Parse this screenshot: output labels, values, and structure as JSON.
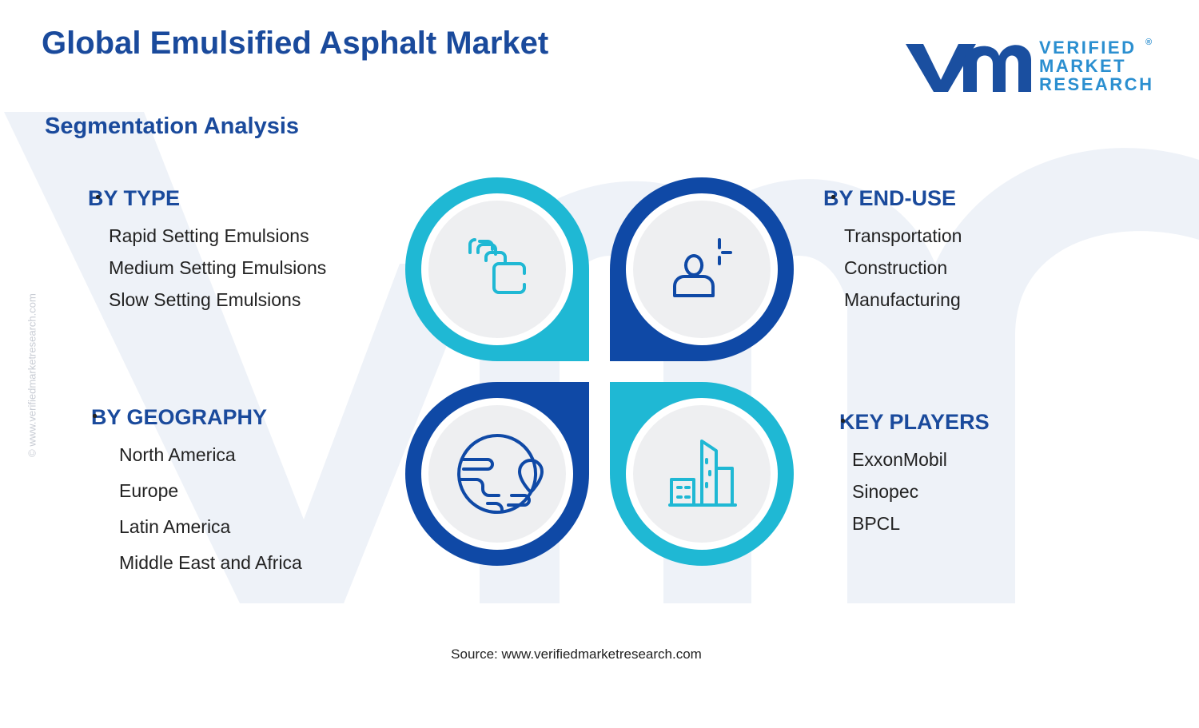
{
  "header": {
    "title": "Global Emulsified Asphalt Market",
    "subtitle": "Segmentation Analysis"
  },
  "logo": {
    "lines": [
      "VERIFIED",
      "MARKET",
      "RESEARCH"
    ],
    "mark": "®"
  },
  "watermark": "© www.verifiedmarketresearch.com",
  "segments": [
    {
      "heading": "BY TYPE",
      "items": [
        "Rapid Setting Emulsions",
        "Medium Setting Emulsions",
        "Slow Setting Emulsions"
      ]
    },
    {
      "heading": "BY END-USE",
      "items": [
        "Transportation",
        "Construction",
        "Manufacturing"
      ]
    },
    {
      "heading": "BY GEOGRAPHY",
      "items": [
        "North America",
        "Europe",
        "Latin America",
        "Middle East and Africa"
      ]
    },
    {
      "heading": "KEY PLAYERS",
      "items": [
        "ExxonMobil",
        "Sinopec",
        "BPCL"
      ]
    }
  ],
  "source": "Source: www.verifiedmarketresearch.com"
}
